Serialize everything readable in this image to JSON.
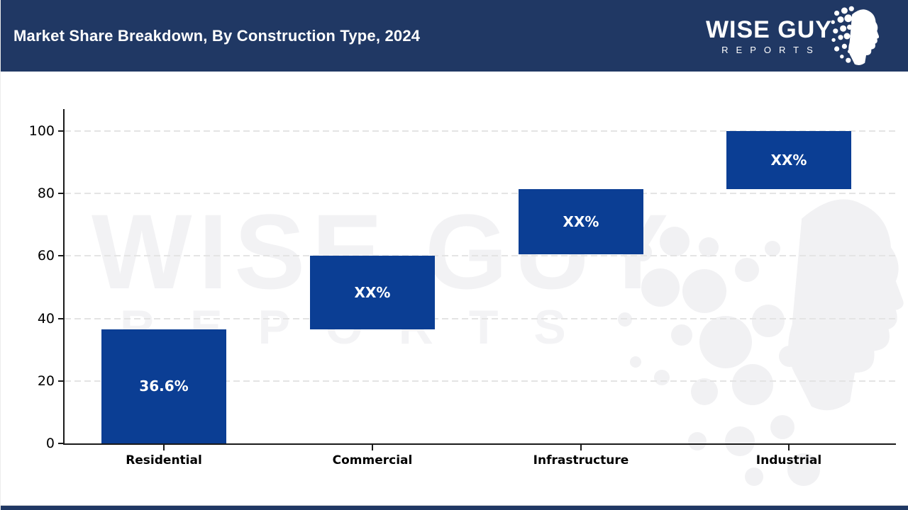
{
  "header": {
    "title": "Market Share Breakdown, By Construction Type, 2024"
  },
  "logo": {
    "line1": "WISE GUY",
    "line2": "REPORTS"
  },
  "watermark": {
    "line1": "WISE GUY",
    "line2": "REPORTS"
  },
  "colors": {
    "header_bg": "#203864",
    "footer_bg": "#203864",
    "bar": "#0b3e94",
    "grid": "#e4e4e4",
    "axis": "#1a1a1a",
    "bar_label": "#ffffff",
    "watermark": "#f2f2f4"
  },
  "chart_data": {
    "type": "bar",
    "subtype": "waterfall",
    "title": "Market Share Breakdown, By Construction Type, 2024",
    "categories": [
      "Residential",
      "Commercial",
      "Infrastructure",
      "Industrial"
    ],
    "segments": [
      {
        "category": "Residential",
        "start": 0,
        "end": 36.6,
        "label": "36.6%"
      },
      {
        "category": "Commercial",
        "start": 36.6,
        "end": 60.1,
        "label": "XX%"
      },
      {
        "category": "Infrastructure",
        "start": 60.5,
        "end": 81.3,
        "label": "XX%"
      },
      {
        "category": "Industrial",
        "start": 81.4,
        "end": 100,
        "label": "XX%"
      }
    ],
    "yticks": [
      0,
      20,
      40,
      60,
      80,
      100
    ],
    "ylim": [
      0,
      107
    ],
    "xlabel": "",
    "ylabel": "",
    "unit": "%",
    "grid": "dashed-horizontal",
    "legend": "none"
  }
}
